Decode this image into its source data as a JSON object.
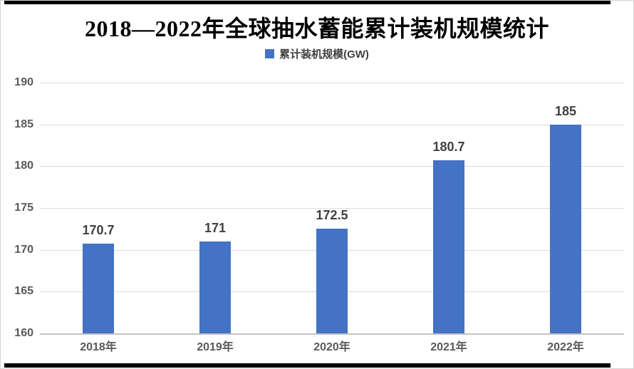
{
  "title": "2018—2022年全球抽水蓄能累计装机规模统计",
  "legend": {
    "label": "累计装机规模(GW)",
    "swatch_color": "#4472C4"
  },
  "chart_data": {
    "type": "bar",
    "title": "2018—2022年全球抽水蓄能累计装机规模统计",
    "categories": [
      "2018年",
      "2019年",
      "2020年",
      "2021年",
      "2022年"
    ],
    "values": [
      170.7,
      171,
      172.5,
      180.7,
      185
    ],
    "data_labels": [
      "170.7",
      "171",
      "172.5",
      "180.7",
      "185"
    ],
    "series_name": "累计装机规模(GW)",
    "xlabel": "",
    "ylabel": "",
    "ylim": [
      160,
      190
    ],
    "yticks": [
      160,
      165,
      170,
      175,
      180,
      185,
      190
    ],
    "grid": true,
    "legend_position": "top",
    "bar_color": "#4472C4"
  },
  "colors": {
    "bar": "#4472C4",
    "gridline": "#dcdcdc",
    "axis_line": "#c3c3c3",
    "tick_label": "#595959",
    "data_label": "#404040",
    "title": "#000000",
    "rule": "#000000",
    "frame": "#d3d3d3"
  }
}
